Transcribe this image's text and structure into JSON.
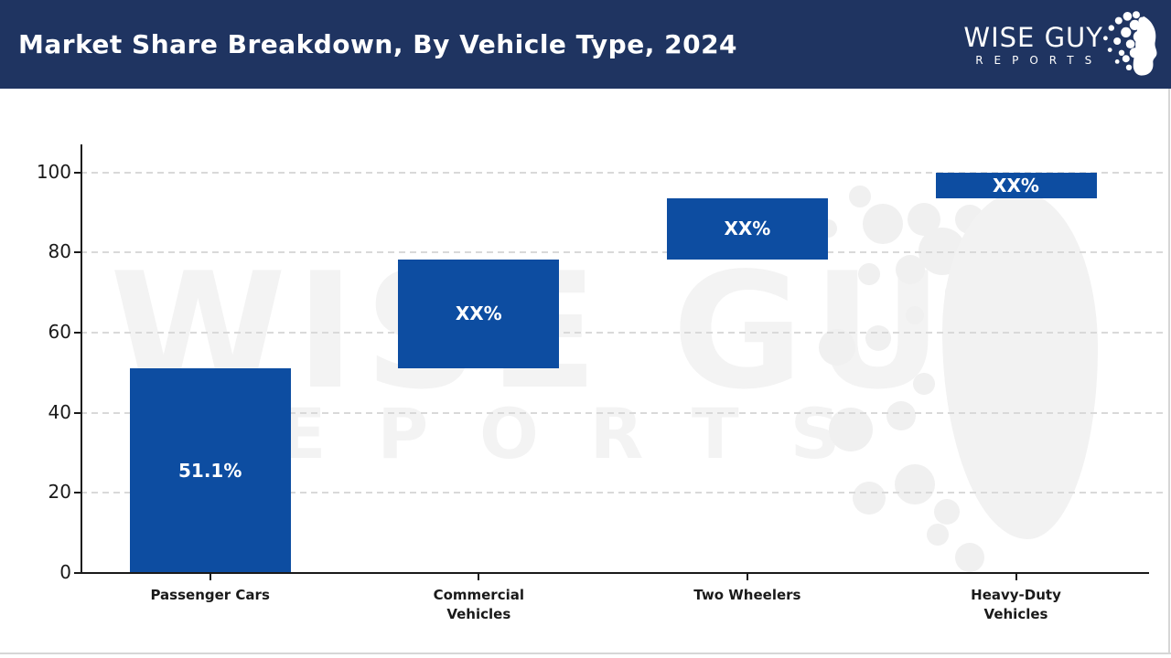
{
  "header": {
    "title": "Market Share Breakdown, By Vehicle Type, 2024",
    "bg_color": "#1f3461",
    "logo": {
      "line1": "WISE GUY",
      "line2": "REPORTS"
    }
  },
  "watermark": {
    "line1": "WISE GUY",
    "line2": "REPORTS"
  },
  "chart_data": {
    "type": "bar",
    "subtype": "waterfall",
    "title": "Market Share Breakdown, By Vehicle Type, 2024",
    "categories": [
      "Passenger Cars",
      "Commercial Vehicles",
      "Two Wheelers",
      "Heavy-Duty Vehicles"
    ],
    "category_label_lines": [
      [
        "Passenger Cars"
      ],
      [
        "Commercial",
        "Vehicles"
      ],
      [
        "Two Wheelers"
      ],
      [
        "Heavy-Duty",
        "Vehicles"
      ]
    ],
    "segments": [
      {
        "category": "Passenger Cars",
        "start": 0,
        "end": 51.1,
        "value": 51.1,
        "label": "51.1%"
      },
      {
        "category": "Commercial Vehicles",
        "start": 51.1,
        "end": 78.3,
        "value": 27.2,
        "label": "XX%"
      },
      {
        "category": "Two Wheelers",
        "start": 78.3,
        "end": 93.5,
        "value": 15.2,
        "label": "XX%"
      },
      {
        "category": "Heavy-Duty Vehicles",
        "start": 93.5,
        "end": 100,
        "value": 6.5,
        "label": "XX%"
      }
    ],
    "ylim": [
      0,
      100
    ],
    "yticks": [
      0,
      20,
      40,
      60,
      80,
      100
    ],
    "xlabel": "",
    "ylabel": "",
    "grid": "horizontal-dashed",
    "legend": "none",
    "bar_color": "#0d4da1",
    "bar_label_color": "#ffffff",
    "axis_color": "#1a1a1a",
    "grid_color": "#d9d9d9"
  }
}
